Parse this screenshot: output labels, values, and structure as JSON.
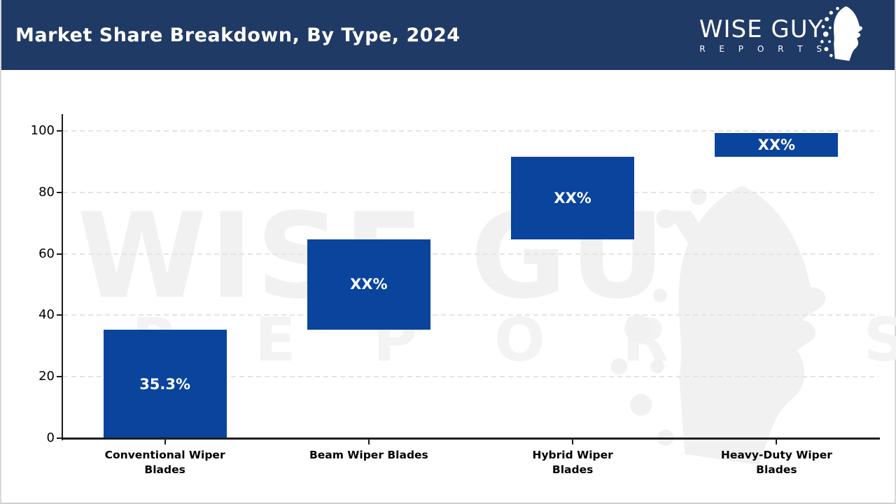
{
  "header": {
    "title": "Market Share Breakdown, By Type, 2024",
    "logo": {
      "line1": "WISE GUY",
      "line2": "R E P O R T S"
    }
  },
  "watermark": {
    "line1": "WISE GUY",
    "line2": "R E P O R T S"
  },
  "colors": {
    "header_bg": "#203a66",
    "bar": "#0a449c",
    "axis": "#1a1a1a",
    "grid": "#e4e4e4",
    "bar_label": "#ffffff"
  },
  "chart_data": {
    "type": "bar",
    "subtype": "waterfall",
    "title": "Market Share Breakdown, By Type, 2024",
    "xlabel": "",
    "ylabel": "",
    "ylim": [
      0,
      100
    ],
    "yticks": [
      0,
      20,
      40,
      60,
      80,
      100
    ],
    "grid": "horizontal-dashed",
    "legend": "none",
    "categories": [
      "Conventional Wiper Blades",
      "Beam Wiper Blades",
      "Hybrid Wiper Blades",
      "Heavy-Duty Wiper Blades"
    ],
    "category_label_lines": [
      [
        "Conventional Wiper",
        "Blades"
      ],
      [
        "Beam Wiper Blades"
      ],
      [
        "Hybrid Wiper",
        "Blades"
      ],
      [
        "Heavy-Duty Wiper",
        "Blades"
      ]
    ],
    "bars": [
      {
        "category": "Conventional Wiper Blades",
        "start": 0,
        "end": 35.3,
        "label": "35.3%"
      },
      {
        "category": "Beam Wiper Blades",
        "start": 35.3,
        "end": 64.8,
        "label": "XX%"
      },
      {
        "category": "Hybrid Wiper Blades",
        "start": 64.8,
        "end": 91.6,
        "label": "XX%"
      },
      {
        "category": "Heavy-Duty Wiper Blades",
        "start": 91.6,
        "end": 99.3,
        "label": "XX%"
      }
    ]
  }
}
